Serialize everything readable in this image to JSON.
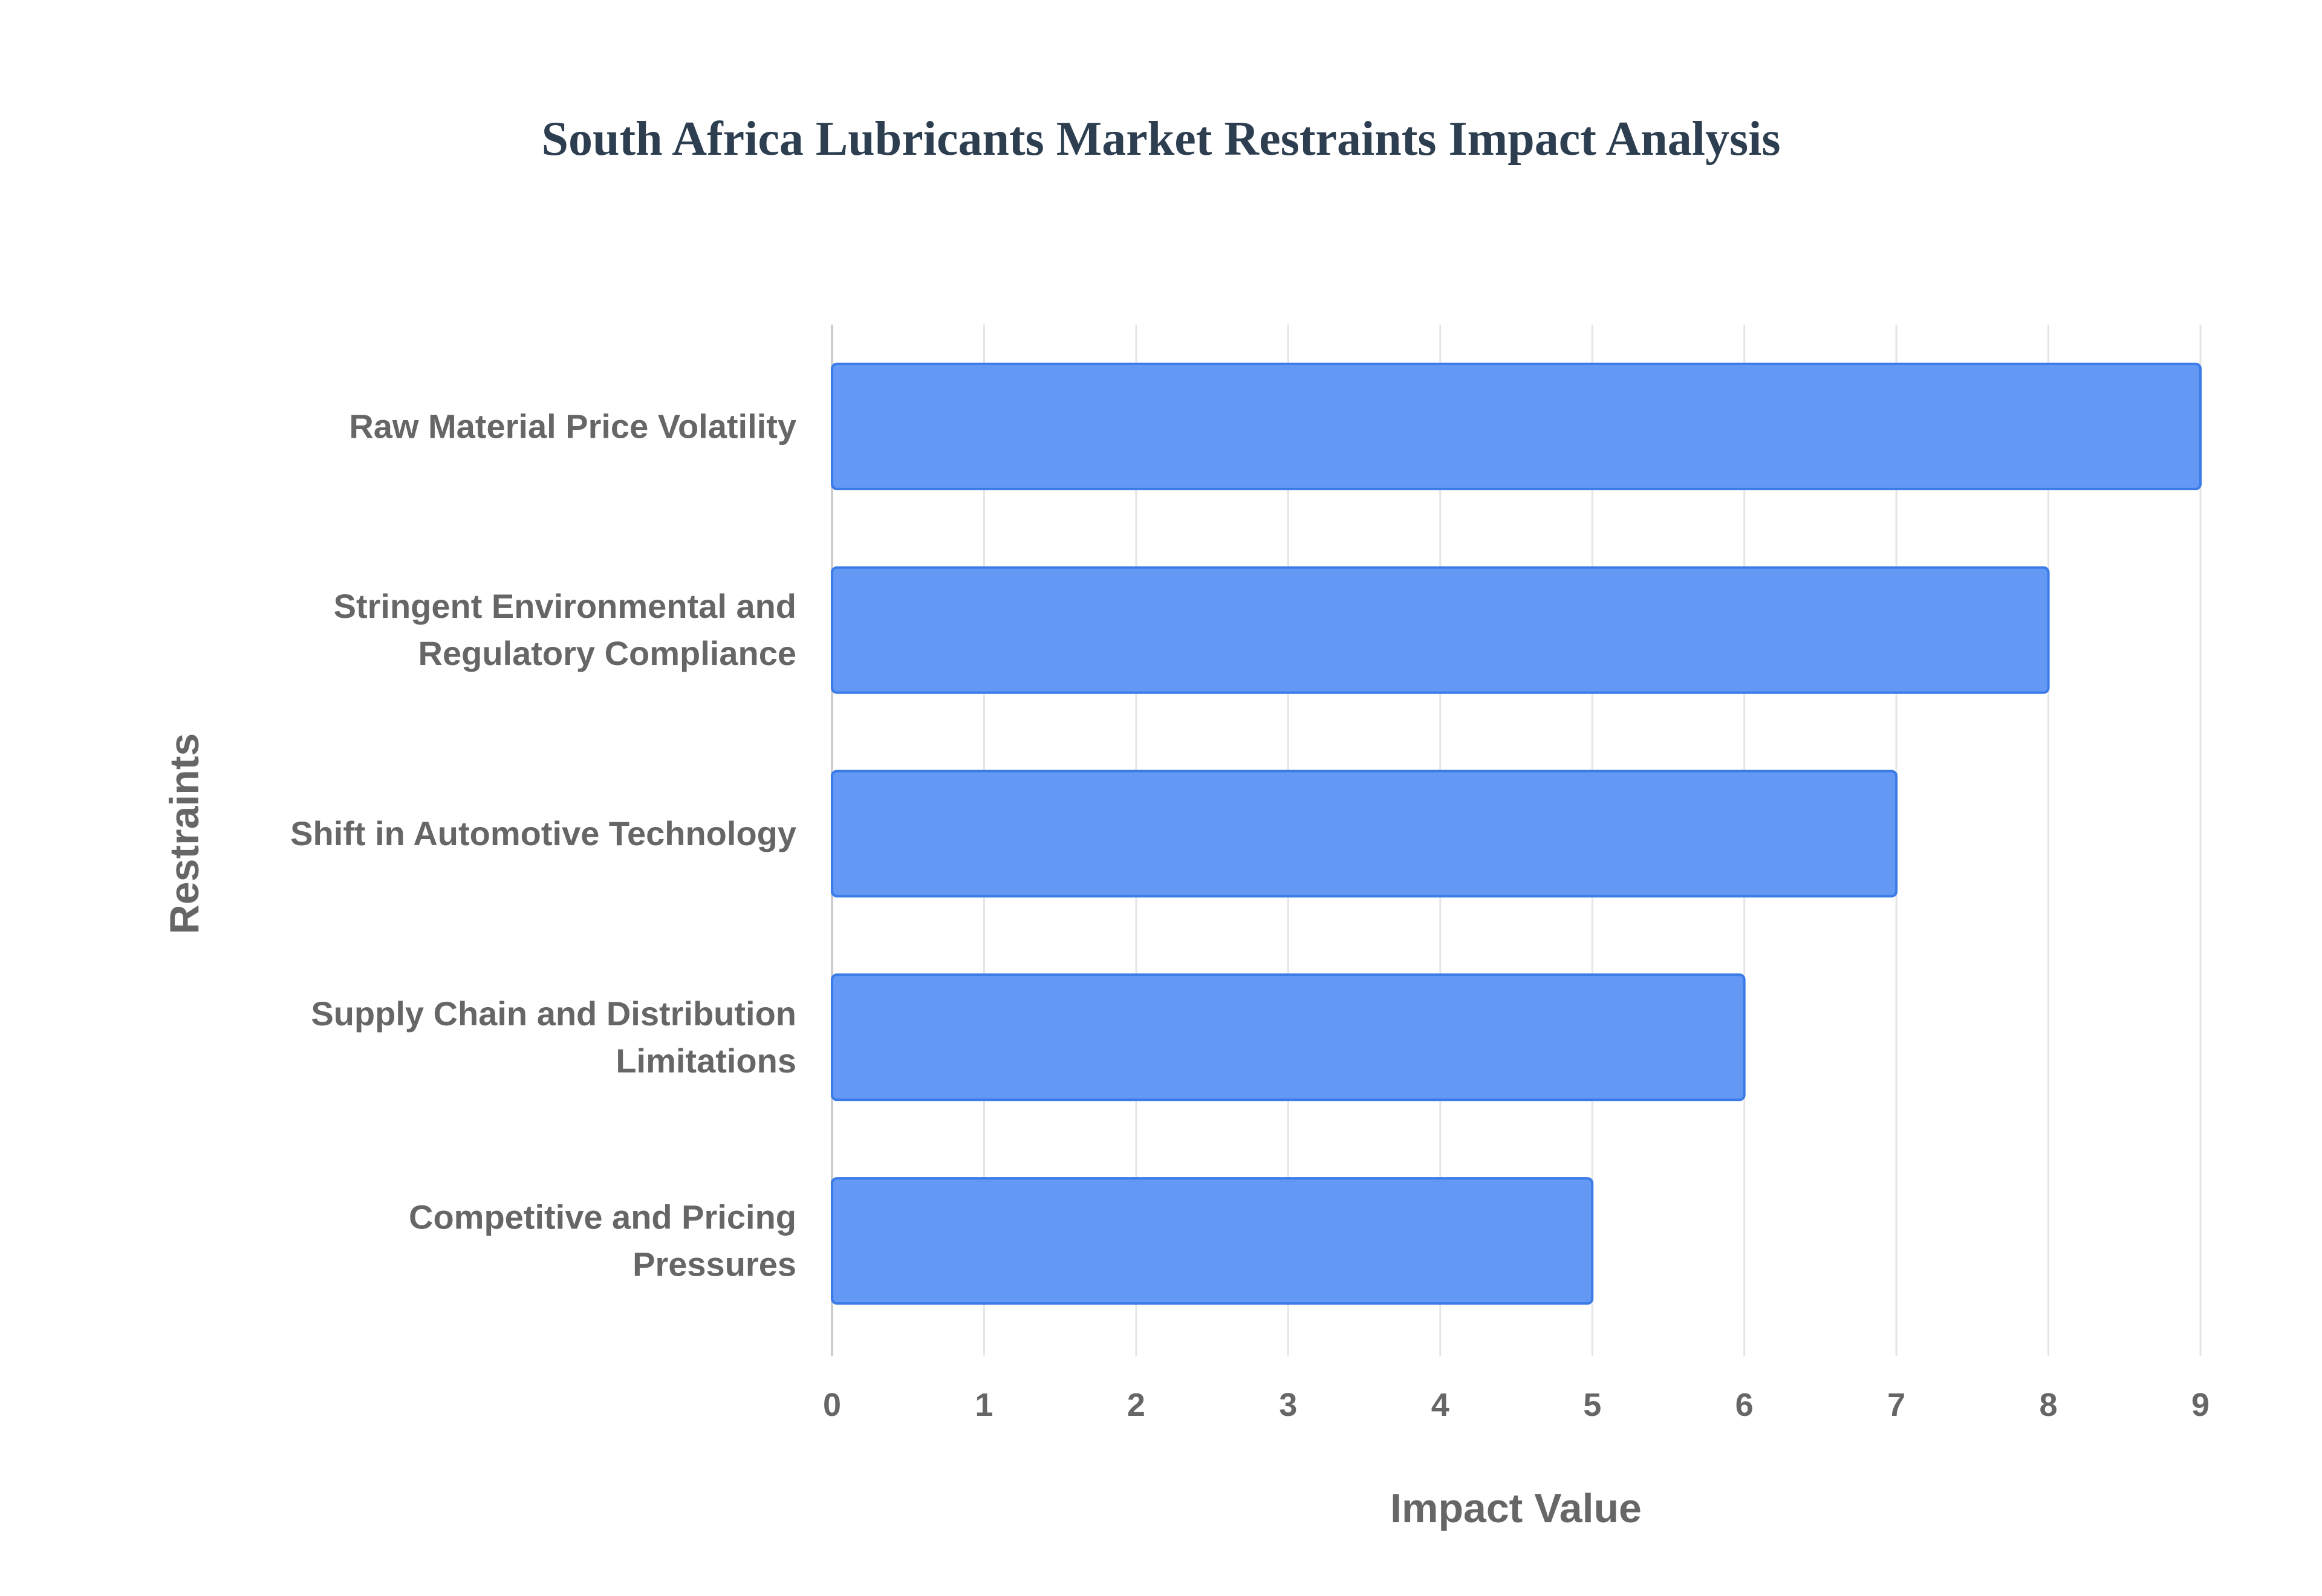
{
  "chart_data": {
    "type": "bar",
    "orientation": "horizontal",
    "title": "South Africa Lubricants Market Restraints Impact Analysis",
    "xlabel": "Impact Value",
    "ylabel": "Restraints",
    "categories": [
      [
        "Raw Material Price Volatility"
      ],
      [
        "Stringent Environmental and",
        "Regulatory Compliance"
      ],
      [
        "Shift in Automotive Technology"
      ],
      [
        "Supply Chain and Distribution",
        "Limitations"
      ],
      [
        "Competitive and Pricing",
        "Pressures"
      ]
    ],
    "values": [
      9,
      8,
      7,
      6,
      5
    ],
    "xlim": [
      0,
      9
    ],
    "xticks": [
      "0",
      "1",
      "2",
      "3",
      "4",
      "5",
      "6",
      "7",
      "8",
      "9"
    ],
    "grid": true,
    "legend": "none",
    "colors": {
      "bar_fill": "#6399f5",
      "bar_border": "#3b7be8",
      "grid": "#e5e5e5",
      "text": "#666666",
      "title": "#2c3e50"
    }
  }
}
